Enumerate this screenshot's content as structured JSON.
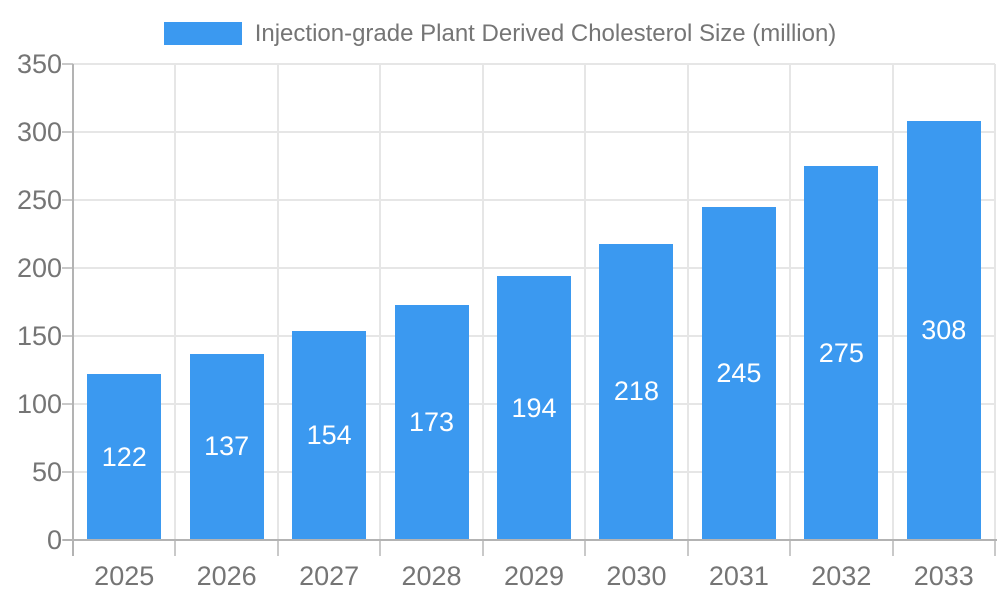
{
  "legend": {
    "label": "Injection-grade Plant Derived Cholesterol Size (million)"
  },
  "colors": {
    "bar": "#3B99F0",
    "axis_text": "#757575",
    "value_label": "#FFFFFF",
    "grid": "#E6E6E6",
    "axis_line": "#B3B3B3",
    "tick": "#C9C9C9",
    "background": "#FFFFFF"
  },
  "chart_data": {
    "type": "bar",
    "title": "Injection-grade Plant Derived Cholesterol Size (million)",
    "categories": [
      "2025",
      "2026",
      "2027",
      "2028",
      "2029",
      "2030",
      "2031",
      "2032",
      "2033"
    ],
    "values": [
      122,
      137,
      154,
      173,
      194,
      218,
      245,
      275,
      308
    ],
    "series": [
      {
        "name": "Injection-grade Plant Derived Cholesterol Size (million)",
        "values": [
          122,
          137,
          154,
          173,
          194,
          218,
          245,
          275,
          308
        ]
      }
    ],
    "xlabel": "",
    "ylabel": "",
    "ylim": [
      0,
      350
    ],
    "yticks": [
      0,
      50,
      100,
      150,
      200,
      250,
      300,
      350
    ],
    "grid": "both",
    "legend_position": "top-center",
    "value_label_position": "inside-middle"
  }
}
